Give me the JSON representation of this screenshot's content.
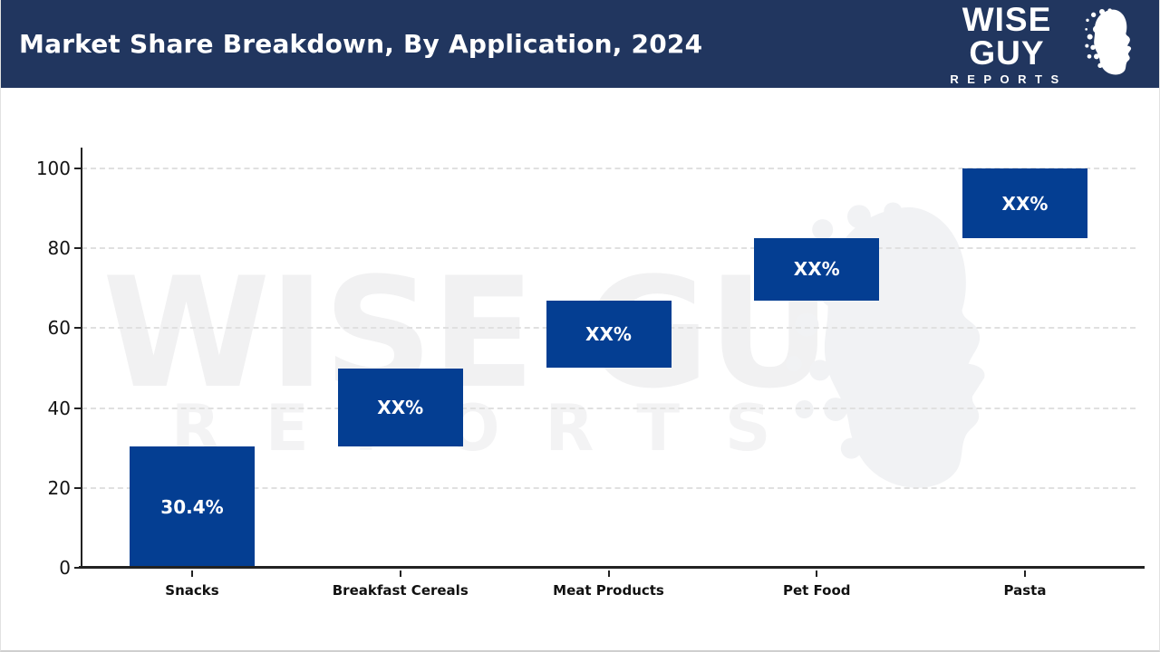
{
  "header": {
    "title": "Market Share Breakdown, By Application, 2024",
    "logo_name": "WISE GUY",
    "logo_sub": "REPORTS"
  },
  "watermark": {
    "line1": "WISE GUY",
    "line2": "REPORTS"
  },
  "chart_data": {
    "type": "bar",
    "subtype": "waterfall-stacked-breakdown",
    "title": "Market Share Breakdown, By Application, 2024",
    "categories": [
      "Snacks",
      "Breakfast Cereals",
      "Meat Products",
      "Pet Food",
      "Pasta"
    ],
    "segments": [
      {
        "category": "Snacks",
        "start": 0,
        "end": 30.4,
        "value": 30.4,
        "label": "30.4%"
      },
      {
        "category": "Breakfast Cereals",
        "start": 30.4,
        "end": 50.0,
        "value": 19.6,
        "label": "XX%"
      },
      {
        "category": "Meat Products",
        "start": 50.0,
        "end": 67.0,
        "value": 17.0,
        "label": "XX%"
      },
      {
        "category": "Pet Food",
        "start": 67.0,
        "end": 82.5,
        "value": 15.5,
        "label": "XX%"
      },
      {
        "category": "Pasta",
        "start": 82.5,
        "end": 100.0,
        "value": 17.5,
        "label": "XX%"
      }
    ],
    "xlabel": "",
    "ylabel": "",
    "y_ticks": [
      0,
      20,
      40,
      60,
      80,
      100
    ],
    "ylim": [
      0,
      105
    ],
    "grid": "horizontal-dashed",
    "legend": "none",
    "bar_color": "#043e92",
    "bar_label_color": "#ffffff"
  }
}
